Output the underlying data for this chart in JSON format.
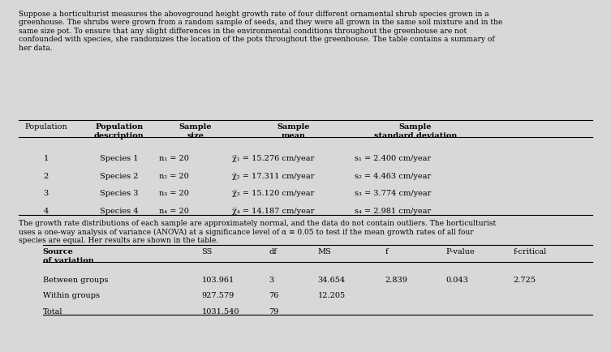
{
  "bg_color": "#d8d8d8",
  "text_color": "#000000",
  "paragraph1": "Suppose a horticulturist measures the aboveground height growth rate of four different ornamental shrub species grown in a\ngreenhouse. The shrubs were grown from a random sample of seeds, and they were all grown in the same soil mixture and in the\nsame size pot. To ensure that any slight differences in the environmental conditions throughout the greenhouse are not\nconfounded with species, she randomizes the location of the pots throughout the greenhouse. The table contains a summary of\nher data.",
  "paragraph2": "The growth rate distributions of each sample are approximately normal, and the data do not contain outliers. The horticulturist\nuses a one-way analysis of variance (ANOVA) at a significance level of α ≡ 0.05 to test if the mean growth rates of all four\nspecies are equal. Her results are shown in the table.",
  "table1_headers": [
    "Population",
    "Population\ndescription",
    "Sample\nsize",
    "Sample\nmean",
    "Sample\nstandard deviation"
  ],
  "table1_rows": [
    [
      "1",
      "Species 1",
      "n₁ = 20",
      "χ̅₁ = 15.276 cm/year",
      "s₁ = 2.400 cm/year"
    ],
    [
      "2",
      "Species 2",
      "n₂ = 20",
      "χ̅₂ = 17.311 cm/year",
      "s₂ = 4.463 cm/year"
    ],
    [
      "3",
      "Species 3",
      "n₃ = 20",
      "χ̅₃ = 15.120 cm/year",
      "s₃ = 3.774 cm/year"
    ],
    [
      "4",
      "Species 4",
      "n₄ = 20",
      "χ̅₄ = 14.187 cm/year",
      "s₄ = 2.981 cm/year"
    ]
  ],
  "table2_headers": [
    "Source\nof variation",
    "SS",
    "df",
    "MS",
    "f",
    "P-value",
    "f-critical"
  ],
  "table2_rows": [
    [
      "Between groups",
      "103.961",
      "3",
      "34.654",
      "2.839",
      "0.043",
      "2.725"
    ],
    [
      "Within groups",
      "927.579",
      "76",
      "12.205",
      "",
      "",
      ""
    ],
    [
      "Total",
      "1031.540",
      "79",
      "",
      "",
      "",
      ""
    ]
  ]
}
